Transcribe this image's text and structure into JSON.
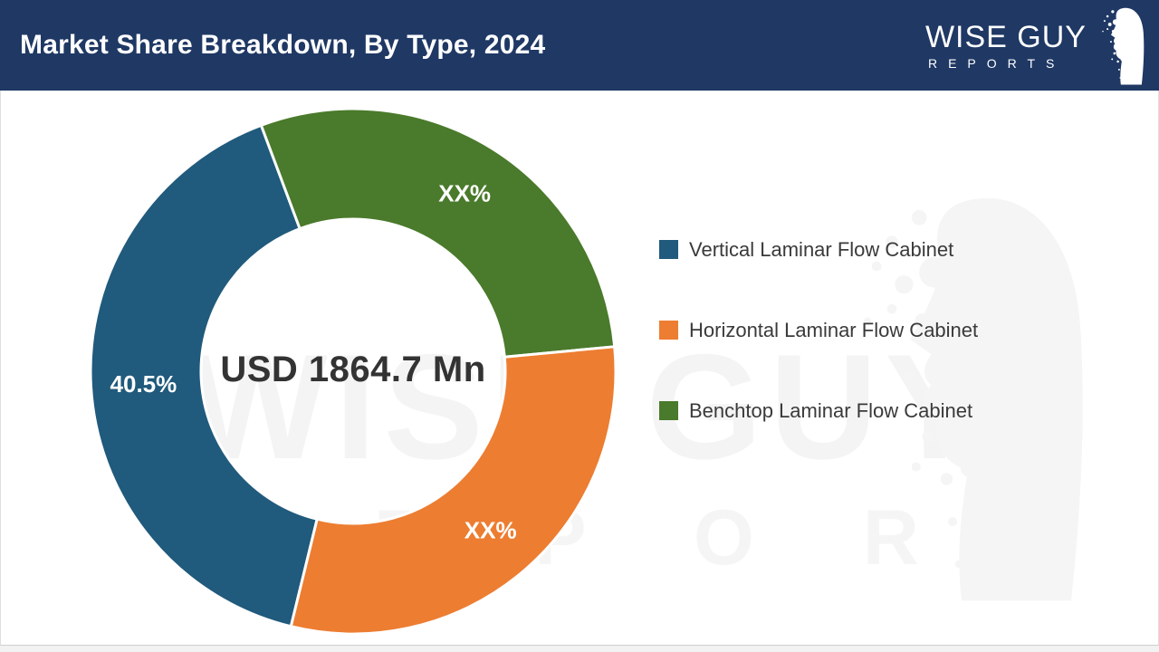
{
  "header": {
    "title": "Market Share Breakdown, By Type, 2024",
    "bg_color": "#1F3864",
    "logo": {
      "line1": "WISE GUY",
      "line2": "REPORTS"
    }
  },
  "watermark": {
    "line1": "WISE GUY",
    "line2": "R E P O R T S"
  },
  "chart_data": {
    "type": "pie",
    "donut": true,
    "title": "Market Share Breakdown, By Type, 2024",
    "center_label": "USD 1864.7 Mn",
    "start_angle": 193.7,
    "draw_sequence": [
      0,
      2,
      1
    ],
    "segments": [
      {
        "name": "Vertical Laminar Flow Cabinet",
        "label": "40.5%",
        "value_pct": 40.5,
        "color": "#205A7C"
      },
      {
        "name": "Horizontal Laminar Flow Cabinet",
        "label": "XX%",
        "value_pct": 30.3,
        "color": "#ED7D31"
      },
      {
        "name": "Benchtop Laminar Flow Cabinet",
        "label": "XX%",
        "value_pct": 29.2,
        "color": "#4A7A2B"
      }
    ],
    "legend_position": "right"
  },
  "legend": {
    "items": [
      {
        "label": "Vertical Laminar Flow Cabinet",
        "color": "#205A7C"
      },
      {
        "label": "Horizontal Laminar Flow Cabinet",
        "color": "#ED7D31"
      },
      {
        "label": "Benchtop Laminar Flow Cabinet",
        "color": "#4A7A2B"
      }
    ]
  },
  "colors": {
    "header_bg": "#1F3864",
    "center_text": "#333333",
    "watermark": "#f4f4f4",
    "border": "#dedede"
  }
}
